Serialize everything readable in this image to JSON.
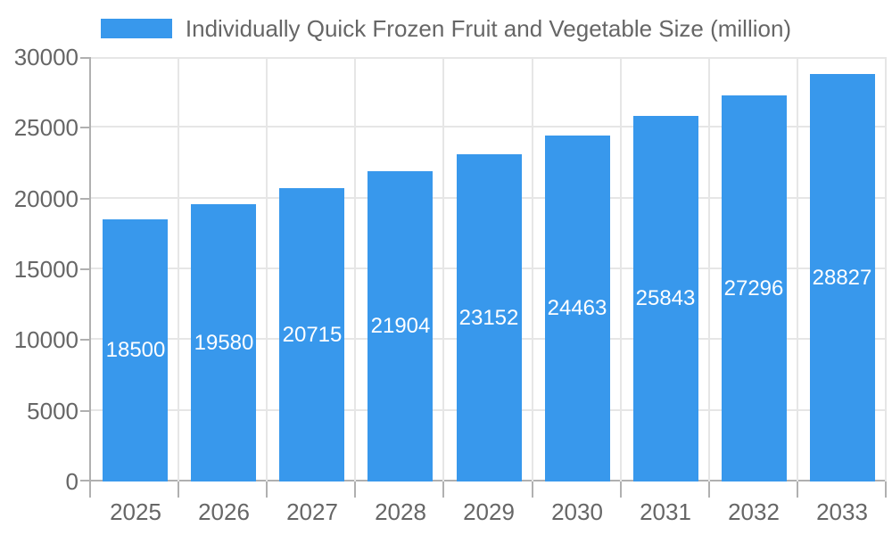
{
  "colors": {
    "bar": "#3898EC",
    "text": "#666666",
    "grid": "#e6e6e6",
    "axis": "#b0b0b0",
    "value_label": "#ffffff"
  },
  "legend": {
    "position": "top"
  },
  "chart_data": {
    "type": "bar",
    "title": "Individually Quick Frozen Fruit and Vegetable Size (million)",
    "categories": [
      "2025",
      "2026",
      "2027",
      "2028",
      "2029",
      "2030",
      "2031",
      "2032",
      "2033"
    ],
    "values": [
      18500,
      19580,
      20715,
      21904,
      23152,
      24463,
      25843,
      27296,
      28827
    ],
    "series": [
      {
        "name": "Individually Quick Frozen Fruit and Vegetable Size (million)",
        "values": [
          18500,
          19580,
          20715,
          21904,
          23152,
          24463,
          25843,
          27296,
          28827
        ]
      }
    ],
    "xlabel": "",
    "ylabel": "",
    "ylim": [
      0,
      30000
    ],
    "yticks": [
      0,
      5000,
      10000,
      15000,
      20000,
      25000,
      30000
    ],
    "grid": true,
    "legend_position": "top",
    "bar_color": "#3898EC",
    "value_labels": "inside-center"
  }
}
